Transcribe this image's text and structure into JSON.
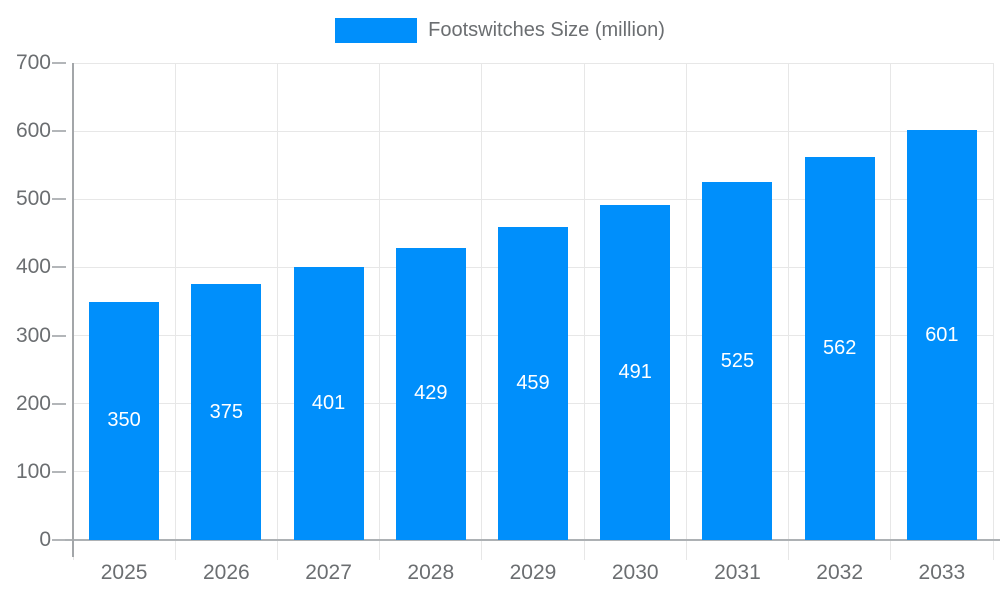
{
  "legend": {
    "label": "Footswitches Size (million)"
  },
  "chart_data": {
    "type": "bar",
    "title": "",
    "xlabel": "",
    "ylabel": "",
    "categories": [
      "2025",
      "2026",
      "2027",
      "2028",
      "2029",
      "2030",
      "2031",
      "2032",
      "2033"
    ],
    "series": [
      {
        "name": "Footswitches Size (million)",
        "values": [
          350,
          375,
          401,
          429,
          459,
          491,
          525,
          562,
          601
        ]
      }
    ],
    "ylim": [
      0,
      700
    ],
    "ytick_step": 100,
    "grid": "horizontal and vertical, light gray",
    "legend_position": "top-center",
    "data_labels": "values shown in white, centered inside bars",
    "colors": {
      "bar": "#008FFB",
      "label_text": "#6b6e71",
      "data_label_text": "#ffffff",
      "grid_line": "#e7e7e7",
      "axis_line": "#a9acaf"
    }
  }
}
